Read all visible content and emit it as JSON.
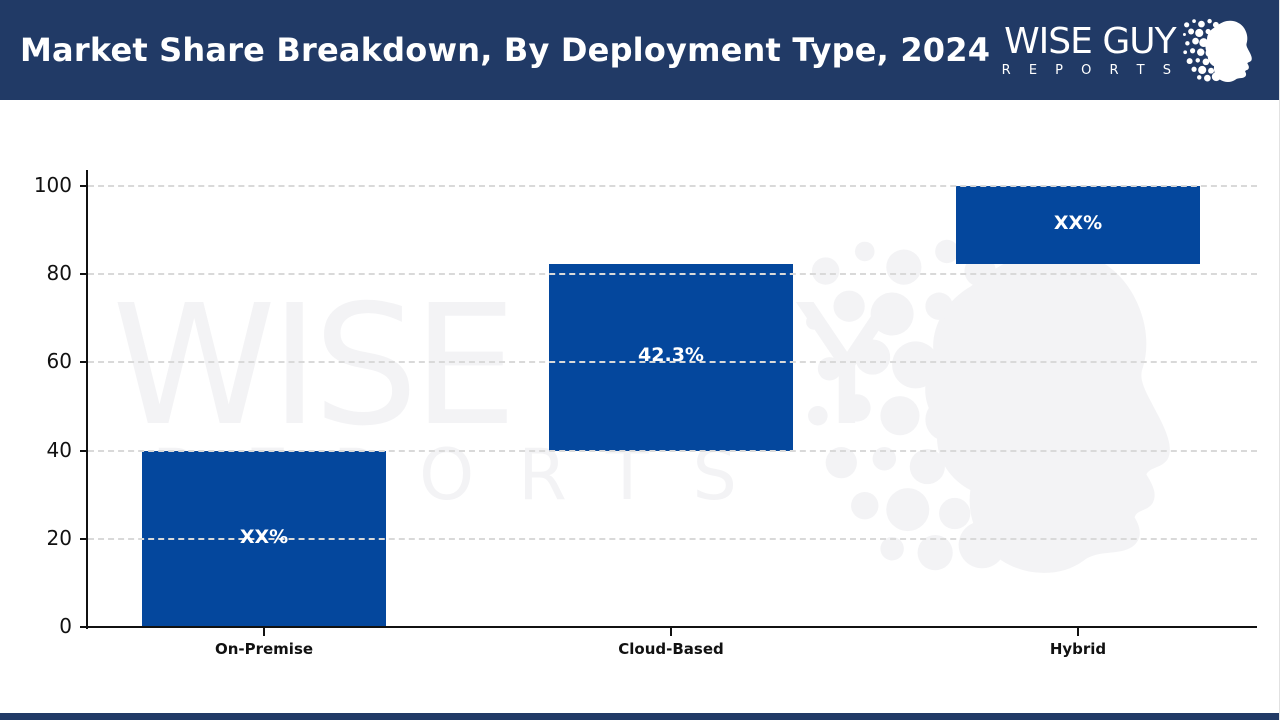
{
  "header": {
    "title": "Market Share Breakdown, By Deployment Type, 2024",
    "logo": {
      "wordmark": "WISE GUY",
      "subtext": "R E P O R T S",
      "icon": "dotted-face-profile-icon"
    }
  },
  "watermark": {
    "wordmark": "WISE GUY",
    "subtext": "REPORTS",
    "icon": "dotted-face-profile-icon"
  },
  "chart_data": {
    "type": "bar",
    "variant": "waterfall",
    "title": "Market Share Breakdown, By Deployment Type, 2024",
    "categories": [
      "On-Premise",
      "Cloud-Based",
      "Hybrid"
    ],
    "segments": [
      {
        "category": "On-Premise",
        "start": 0,
        "end": 40,
        "label": "XX%"
      },
      {
        "category": "Cloud-Based",
        "start": 40,
        "end": 82.3,
        "label": "42.3%"
      },
      {
        "category": "Hybrid",
        "start": 82.3,
        "end": 100,
        "label": "XX%"
      }
    ],
    "ylim": [
      0,
      100
    ],
    "yticks": [
      0,
      20,
      40,
      60,
      80,
      100
    ],
    "xlabel": "",
    "ylabel": "",
    "grid": "horizontal-dashed",
    "grid_above_bars": true,
    "legend": "none",
    "bar_color": "#04479d"
  },
  "colors": {
    "header_bg": "#213a66",
    "footer_bg": "#213a66",
    "bar": "#04479d",
    "gridline": "#d9d9d9",
    "axis": "#111111",
    "watermark": "#f3f3f5",
    "title_text": "#ffffff",
    "bar_label_text": "#ffffff"
  }
}
